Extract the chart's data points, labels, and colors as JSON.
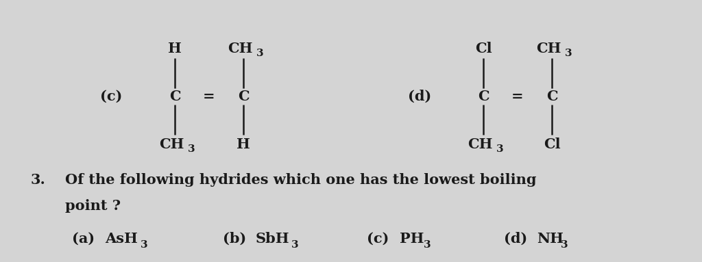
{
  "bg_color": "#d4d4d4",
  "text_color": "#1a1a1a",
  "fig_width": 10.24,
  "fig_height": 3.83,
  "struct_c_label": "(c)",
  "struct_d_label": "(d)",
  "struct_c": {
    "top_left": "H",
    "top_right": "CH",
    "top_right_sub": "3",
    "bottom_left": "CH",
    "bottom_left_sub": "3",
    "bottom_right": "H"
  },
  "struct_d": {
    "top_left": "Cl",
    "top_right": "CH",
    "top_right_sub": "3",
    "bottom_left": "CH",
    "bottom_left_sub": "3",
    "bottom_right": "Cl"
  },
  "question_num": "3.",
  "question_line1": "Of the following hydrides which one has the lowest boiling",
  "question_line2": "point ?",
  "options": [
    {
      "label": "(a)",
      "main": "AsH",
      "sub": "3"
    },
    {
      "label": "(b)",
      "main": "SbH",
      "sub": "3"
    },
    {
      "label": "(c)",
      "main": "PH",
      "sub": "3"
    },
    {
      "label": "(d)",
      "main": "NH",
      "sub": "3"
    }
  ],
  "main_fontsize": 15,
  "sub_fontsize": 11,
  "label_fontsize": 15
}
